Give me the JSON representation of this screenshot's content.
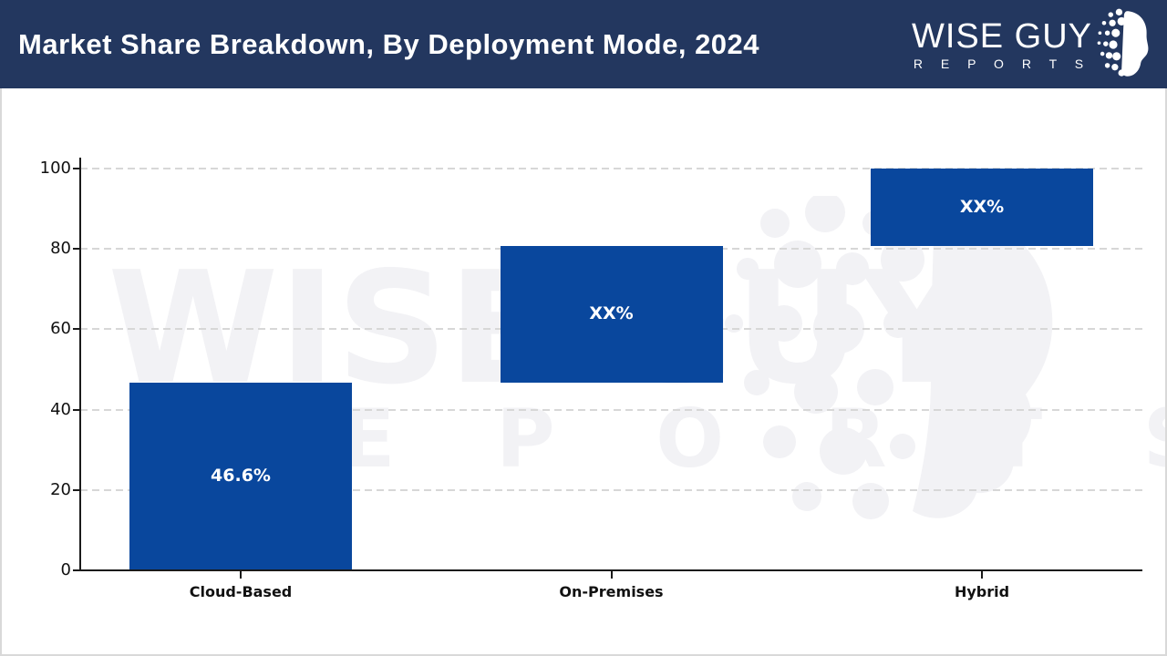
{
  "header": {
    "title": "Market Share Breakdown, By Deployment Mode, 2024",
    "bg_color": "#23375F",
    "logo": {
      "line1": "WISE GUY",
      "line2": "R E P O R T S"
    }
  },
  "watermark": {
    "line1": "WISE GUY",
    "line2": "R E P O R T S"
  },
  "chart_data": {
    "type": "bar",
    "variant": "waterfall",
    "title": "Market Share Breakdown, By Deployment Mode, 2024",
    "categories": [
      "Cloud-Based",
      "On-Premises",
      "Hybrid"
    ],
    "bars": [
      {
        "category": "Cloud-Based",
        "start": 0,
        "end": 46.6,
        "value": 46.6,
        "label": "46.6%"
      },
      {
        "category": "On-Premises",
        "start": 46.6,
        "end": 80.7,
        "value": 34.1,
        "label": "XX%"
      },
      {
        "category": "Hybrid",
        "start": 80.7,
        "end": 100,
        "value": 19.3,
        "label": "XX%"
      }
    ],
    "ylim": [
      0,
      100
    ],
    "yticks": [
      0,
      20,
      40,
      60,
      80,
      100
    ],
    "xlabel": "",
    "ylabel": "",
    "grid": true,
    "grid_style": "dashed-horizontal",
    "legend": null,
    "bar_color": "#09479D",
    "bar_label_color": "#ffffff",
    "axis_color": "#1a1a1a"
  }
}
